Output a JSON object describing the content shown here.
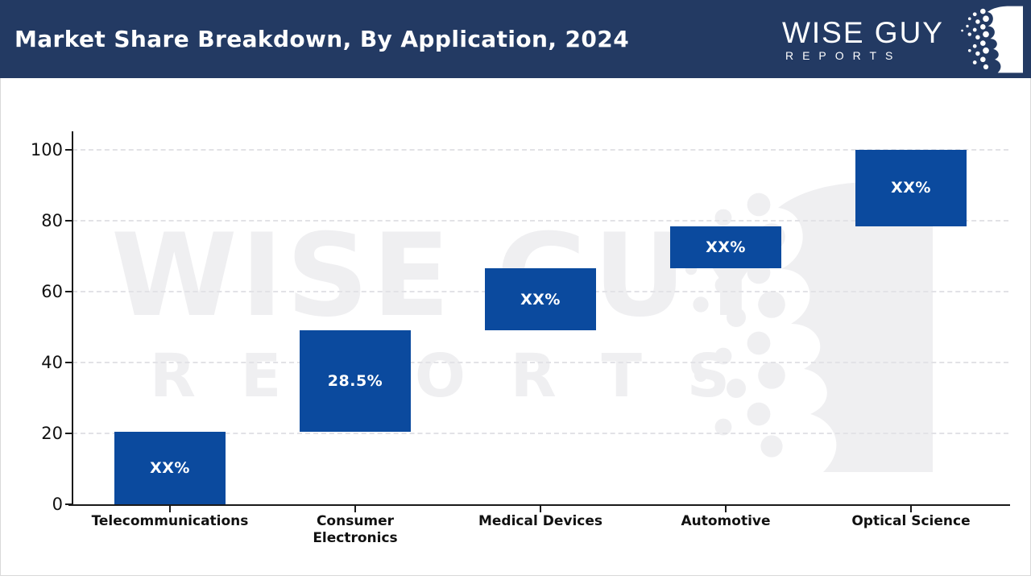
{
  "header": {
    "bg_color": "#233a63",
    "logo": {
      "line1": "WISE GUY",
      "line2": "REPORTS"
    }
  },
  "watermark": {
    "line1": "WISE GUY",
    "line2": "R E P O R T S",
    "color": "#efeff1"
  },
  "chart_data": {
    "type": "bar",
    "subtype": "waterfall",
    "title": "Market Share Breakdown, By Application, 2024",
    "xlabel": "",
    "ylabel": "",
    "ylim": [
      0,
      105
    ],
    "grid": "horizontal-dashed",
    "legend": "none",
    "bar_color": "#0b4a9e",
    "axis_color": "#1a1a1a",
    "grid_color": "#e2e2e6",
    "yticks": [
      0,
      20,
      40,
      60,
      80,
      100
    ],
    "categories": [
      "Telecommunications",
      "Consumer\nElectronics",
      "Medical Devices",
      "Automotive",
      "Optical Science"
    ],
    "segments": [
      {
        "category": "Telecommunications",
        "start": 0,
        "end": 20.5,
        "label": "XX%"
      },
      {
        "category": "Consumer Electronics",
        "start": 20.5,
        "end": 49,
        "label": "28.5%"
      },
      {
        "category": "Medical Devices",
        "start": 49,
        "end": 66.5,
        "label": "XX%"
      },
      {
        "category": "Automotive",
        "start": 66.5,
        "end": 78.5,
        "label": "XX%"
      },
      {
        "category": "Optical Science",
        "start": 78.5,
        "end": 100,
        "label": "XX%"
      }
    ]
  }
}
